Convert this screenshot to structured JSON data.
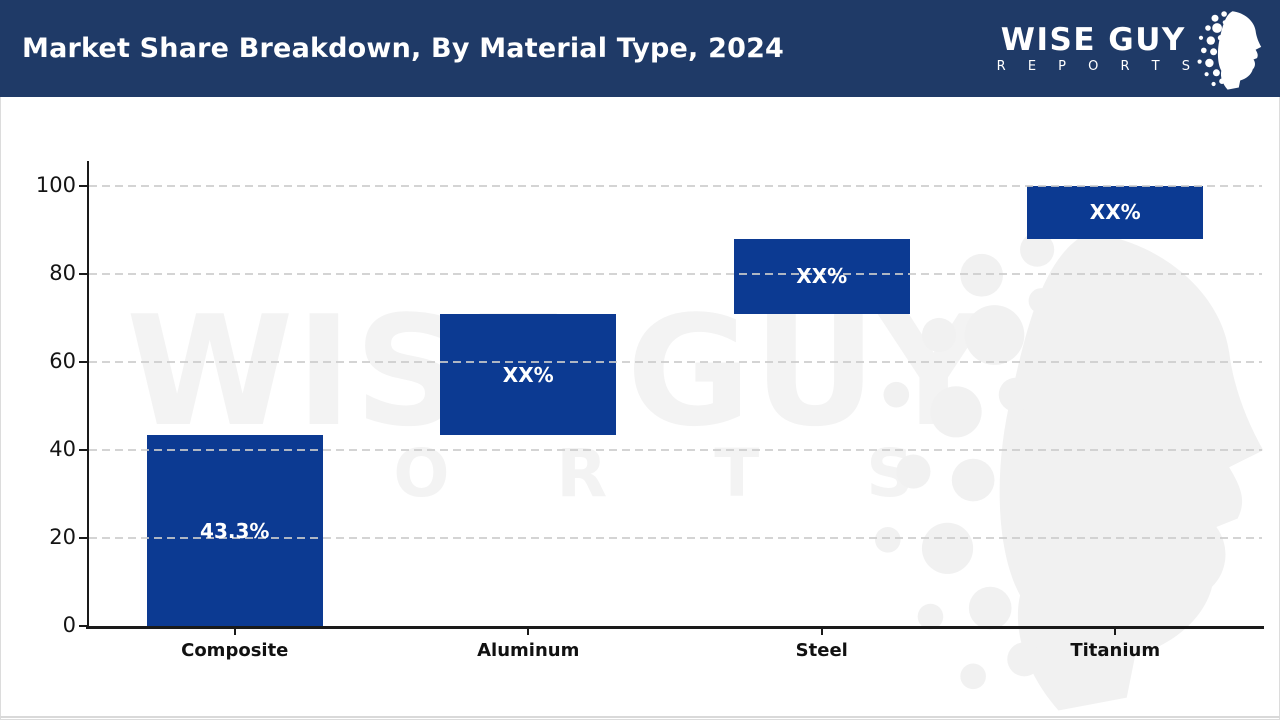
{
  "header": {
    "title": "Market Share Breakdown, By Material Type, 2024",
    "logo": {
      "line1": "WISE GUY",
      "line2": "R E P O R T S"
    }
  },
  "watermark": {
    "line1": "WISE GUY",
    "line2": "P O R T S"
  },
  "chart_data": {
    "type": "bar",
    "subtype": "waterfall",
    "title": "Market Share Breakdown, By Material Type, 2024",
    "categories": [
      "Composite",
      "Aluminum",
      "Steel",
      "Titanium"
    ],
    "segments": [
      {
        "category": "Composite",
        "start": 0,
        "end": 43.3,
        "label": "43.3%"
      },
      {
        "category": "Aluminum",
        "start": 43.3,
        "end": 71,
        "label": "XX%"
      },
      {
        "category": "Steel",
        "start": 71,
        "end": 88,
        "label": "XX%"
      },
      {
        "category": "Titanium",
        "start": 88,
        "end": 100,
        "label": "XX%"
      }
    ],
    "yticks": [
      0,
      20,
      40,
      60,
      80,
      100
    ],
    "ylim": [
      0,
      105
    ],
    "xlabel": "",
    "ylabel": "",
    "grid": "horizontal-dashed",
    "legend": "none",
    "bar_color": "#0c3a92",
    "label_color": "#ffffff"
  },
  "colors": {
    "header_bg": "#1f3a67",
    "bar": "#0c3a92",
    "grid": "#cccccc",
    "axis": "#1a1a1a",
    "watermark": "#f3f3f3"
  }
}
